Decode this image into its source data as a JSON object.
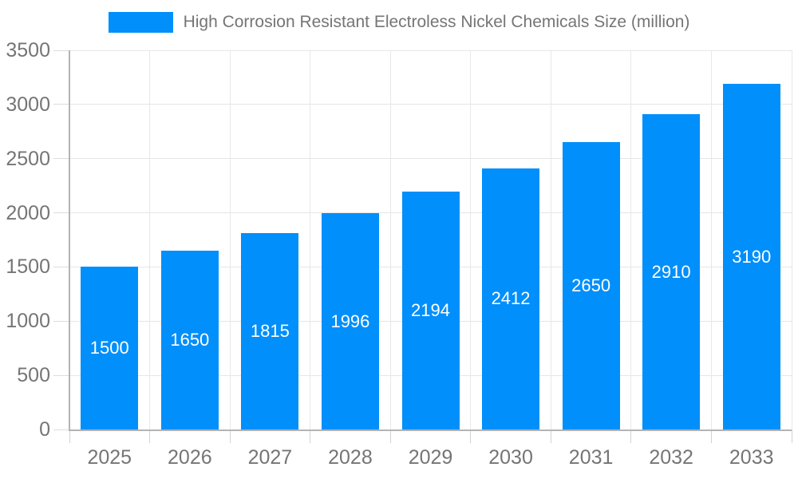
{
  "legend": {
    "position": "top"
  },
  "colors": {
    "bar": "#008FFB",
    "axis_label": "#757575",
    "value_label": "#ffffff",
    "gridline": "#e6e6e6",
    "axis_line": "#b3b3b3"
  },
  "chart_data": {
    "type": "bar",
    "title": "High Corrosion Resistant Electroless Nickel Chemicals Size (million)",
    "categories": [
      "2025",
      "2026",
      "2027",
      "2028",
      "2029",
      "2030",
      "2031",
      "2032",
      "2033"
    ],
    "values": [
      1500,
      1650,
      1815,
      1996,
      2194,
      2412,
      2650,
      2910,
      3190
    ],
    "value_labels": [
      "1500",
      "1650",
      "1815",
      "1996",
      "2194",
      "2412",
      "2650",
      "2910",
      "3190"
    ],
    "xlabel": "",
    "ylabel": "",
    "ylim": [
      0,
      3500
    ],
    "y_ticks": [
      0,
      500,
      1000,
      1500,
      2000,
      2500,
      3000,
      3500
    ],
    "y_tick_labels": [
      "0",
      "500",
      "1000",
      "1500",
      "2000",
      "2500",
      "3000",
      "3500"
    ],
    "grid": true,
    "legend_position": "top",
    "bar_color": "#008FFB",
    "value_label_color": "#ffffff"
  }
}
